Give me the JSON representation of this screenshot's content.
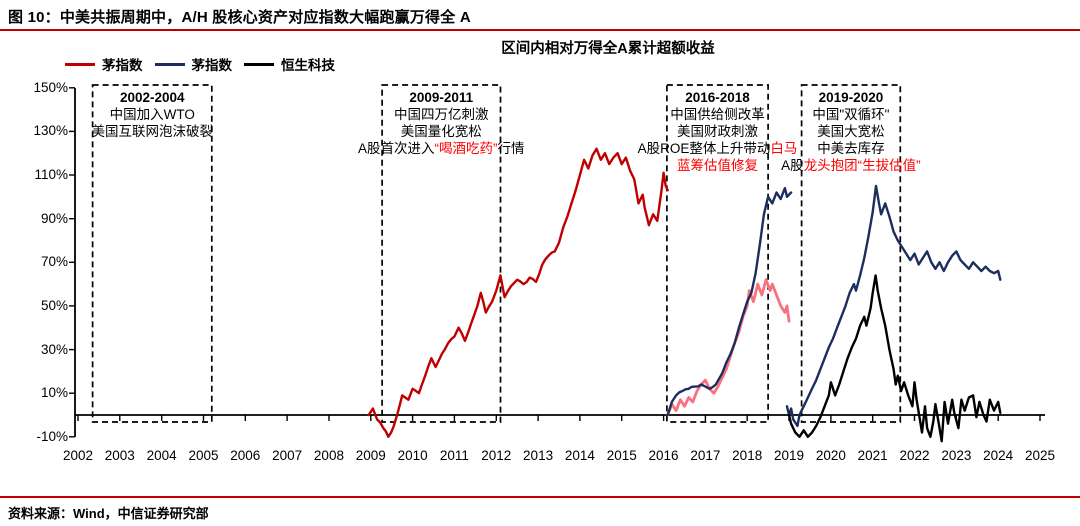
{
  "header": {
    "title": "图 10：中美共振周期中，A/H 股核心资产对应指数大幅跑赢万得全 A"
  },
  "footer": {
    "source": "资料来源：Wind，中信证券研究部"
  },
  "colors": {
    "title_rule_red": "#C00000",
    "annotation_red_text": "#FF0000",
    "axis_black": "#000000"
  },
  "chart_data": {
    "type": "line",
    "title": "区间内相对万得全A累计超额收益",
    "grid": false,
    "legend_position": "top-left",
    "y_axis": {
      "unit": "%",
      "lim": [
        -10,
        150
      ],
      "ticks": [
        150,
        130,
        110,
        90,
        70,
        50,
        30,
        10,
        -10
      ]
    },
    "x_axis": {
      "lim": [
        2002,
        2025
      ],
      "ticks": [
        2002,
        2003,
        2004,
        2005,
        2006,
        2007,
        2008,
        2009,
        2010,
        2011,
        2012,
        2013,
        2014,
        2015,
        2016,
        2017,
        2018,
        2019,
        2020,
        2021,
        2022,
        2023,
        2024,
        2025
      ]
    },
    "legend": [
      {
        "label": "茅指数",
        "color": "#C00000"
      },
      {
        "label": "茅指数",
        "color": "#1B2E5F"
      },
      {
        "label": "恒生科技",
        "color": "#000000"
      }
    ],
    "series": [
      {
        "name": "茅指数",
        "color": "#C00000",
        "points": [
          [
            2008.95,
            0
          ],
          [
            2009.05,
            3
          ],
          [
            2009.15,
            -2
          ],
          [
            2009.3,
            -6
          ],
          [
            2009.42,
            -10
          ],
          [
            2009.55,
            -5
          ],
          [
            2009.63,
            0
          ],
          [
            2009.75,
            9
          ],
          [
            2009.9,
            7
          ],
          [
            2010.0,
            12
          ],
          [
            2010.15,
            10
          ],
          [
            2010.3,
            18
          ],
          [
            2010.45,
            26
          ],
          [
            2010.55,
            22
          ],
          [
            2010.7,
            28
          ],
          [
            2010.85,
            33
          ],
          [
            2011.0,
            36
          ],
          [
            2011.1,
            40
          ],
          [
            2011.25,
            34
          ],
          [
            2011.4,
            42
          ],
          [
            2011.55,
            50
          ],
          [
            2011.63,
            56
          ],
          [
            2011.75,
            47
          ],
          [
            2011.9,
            52
          ],
          [
            2012.0,
            57
          ],
          [
            2012.1,
            64
          ],
          [
            2012.2,
            54
          ],
          [
            2012.35,
            59
          ],
          [
            2012.5,
            62
          ],
          [
            2012.65,
            60
          ],
          [
            2012.8,
            63
          ],
          [
            2012.95,
            61
          ],
          [
            2013.1,
            69
          ],
          [
            2013.25,
            73
          ],
          [
            2013.4,
            75
          ],
          [
            2013.5,
            79
          ],
          [
            2013.6,
            86
          ],
          [
            2013.7,
            91
          ],
          [
            2013.8,
            97
          ],
          [
            2013.9,
            103
          ],
          [
            2014.0,
            110
          ],
          [
            2014.1,
            117
          ],
          [
            2014.2,
            113
          ],
          [
            2014.3,
            119
          ],
          [
            2014.4,
            122
          ],
          [
            2014.5,
            117
          ],
          [
            2014.6,
            120
          ],
          [
            2014.7,
            115
          ],
          [
            2014.8,
            118
          ],
          [
            2014.9,
            120
          ],
          [
            2015.0,
            115
          ],
          [
            2015.1,
            118
          ],
          [
            2015.2,
            112
          ],
          [
            2015.3,
            108
          ],
          [
            2015.4,
            97
          ],
          [
            2015.5,
            101
          ],
          [
            2015.55,
            95
          ],
          [
            2015.65,
            87
          ],
          [
            2015.75,
            92
          ],
          [
            2015.85,
            89
          ],
          [
            2015.95,
            103
          ],
          [
            2016.0,
            111
          ],
          [
            2016.05,
            105
          ],
          [
            2016.1,
            103
          ]
        ]
      },
      {
        "name": "茅指数",
        "color": "#F9707E",
        "points": [
          [
            2016.1,
            0
          ],
          [
            2016.2,
            5
          ],
          [
            2016.3,
            2
          ],
          [
            2016.4,
            7
          ],
          [
            2016.5,
            4
          ],
          [
            2016.6,
            8
          ],
          [
            2016.7,
            6
          ],
          [
            2016.8,
            11
          ],
          [
            2016.9,
            14
          ],
          [
            2017.0,
            16
          ],
          [
            2017.1,
            12
          ],
          [
            2017.2,
            10
          ],
          [
            2017.3,
            13
          ],
          [
            2017.4,
            17
          ],
          [
            2017.5,
            21
          ],
          [
            2017.6,
            27
          ],
          [
            2017.7,
            33
          ],
          [
            2017.8,
            38
          ],
          [
            2017.9,
            45
          ],
          [
            2018.0,
            50
          ],
          [
            2018.05,
            57
          ],
          [
            2018.15,
            52
          ],
          [
            2018.25,
            60
          ],
          [
            2018.35,
            55
          ],
          [
            2018.45,
            62
          ],
          [
            2018.55,
            57
          ],
          [
            2018.6,
            60
          ],
          [
            2018.7,
            55
          ],
          [
            2018.8,
            50
          ],
          [
            2018.9,
            47
          ],
          [
            2018.95,
            50
          ],
          [
            2019.0,
            43
          ]
        ]
      },
      {
        "name": "茅指数",
        "color": "#1B2E5F",
        "points": [
          [
            2016.1,
            0
          ],
          [
            2016.2,
            6
          ],
          [
            2016.3,
            9
          ],
          [
            2016.45,
            11
          ],
          [
            2016.6,
            12
          ],
          [
            2016.75,
            13
          ],
          [
            2016.9,
            14
          ],
          [
            2017.0,
            13
          ],
          [
            2017.1,
            12
          ],
          [
            2017.25,
            14
          ],
          [
            2017.4,
            19
          ],
          [
            2017.5,
            24
          ],
          [
            2017.6,
            28
          ],
          [
            2017.7,
            33
          ],
          [
            2017.8,
            40
          ],
          [
            2017.9,
            46
          ],
          [
            2018.0,
            52
          ],
          [
            2018.1,
            56
          ],
          [
            2018.2,
            65
          ],
          [
            2018.3,
            78
          ],
          [
            2018.4,
            92
          ],
          [
            2018.5,
            100
          ],
          [
            2018.6,
            97
          ],
          [
            2018.7,
            102
          ],
          [
            2018.8,
            99
          ],
          [
            2018.9,
            104
          ],
          [
            2018.95,
            100
          ],
          [
            2019.05,
            102
          ]
        ]
      },
      {
        "name": "茅指数",
        "color": "#1B2E5F",
        "points": [
          [
            2018.95,
            4
          ],
          [
            2019.0,
            0
          ],
          [
            2019.05,
            3
          ],
          [
            2019.1,
            -2
          ],
          [
            2019.2,
            -5
          ],
          [
            2019.25,
            0
          ],
          [
            2019.35,
            4
          ],
          [
            2019.45,
            8
          ],
          [
            2019.55,
            12
          ],
          [
            2019.65,
            16
          ],
          [
            2019.75,
            21
          ],
          [
            2019.85,
            26
          ],
          [
            2019.95,
            31
          ],
          [
            2020.05,
            35
          ],
          [
            2020.15,
            40
          ],
          [
            2020.25,
            45
          ],
          [
            2020.35,
            50
          ],
          [
            2020.45,
            56
          ],
          [
            2020.55,
            60
          ],
          [
            2020.6,
            57
          ],
          [
            2020.7,
            64
          ],
          [
            2020.8,
            72
          ],
          [
            2020.9,
            82
          ],
          [
            2021.0,
            93
          ],
          [
            2021.08,
            105
          ],
          [
            2021.15,
            97
          ],
          [
            2021.2,
            92
          ],
          [
            2021.3,
            97
          ],
          [
            2021.4,
            91
          ],
          [
            2021.5,
            84
          ],
          [
            2021.6,
            80
          ],
          [
            2021.7,
            77
          ],
          [
            2021.8,
            74
          ],
          [
            2021.9,
            71
          ],
          [
            2022.0,
            74
          ],
          [
            2022.1,
            69
          ],
          [
            2022.2,
            72
          ],
          [
            2022.3,
            75
          ],
          [
            2022.4,
            70
          ],
          [
            2022.5,
            67
          ],
          [
            2022.6,
            70
          ],
          [
            2022.7,
            66
          ],
          [
            2022.8,
            70
          ],
          [
            2022.9,
            73
          ],
          [
            2023.0,
            75
          ],
          [
            2023.1,
            71
          ],
          [
            2023.2,
            69
          ],
          [
            2023.3,
            67
          ],
          [
            2023.4,
            70
          ],
          [
            2023.5,
            68
          ],
          [
            2023.6,
            66
          ],
          [
            2023.7,
            68
          ],
          [
            2023.8,
            66
          ],
          [
            2023.9,
            65
          ],
          [
            2024.0,
            66
          ],
          [
            2024.05,
            62
          ]
        ]
      },
      {
        "name": "恒生科技",
        "color": "#000000",
        "points": [
          [
            2019.0,
            0
          ],
          [
            2019.05,
            -4
          ],
          [
            2019.15,
            -8
          ],
          [
            2019.25,
            -10
          ],
          [
            2019.35,
            -7
          ],
          [
            2019.45,
            -10
          ],
          [
            2019.55,
            -8
          ],
          [
            2019.65,
            -5
          ],
          [
            2019.75,
            -1
          ],
          [
            2019.85,
            4
          ],
          [
            2019.95,
            9
          ],
          [
            2020.0,
            15
          ],
          [
            2020.1,
            9
          ],
          [
            2020.2,
            14
          ],
          [
            2020.3,
            20
          ],
          [
            2020.4,
            26
          ],
          [
            2020.5,
            31
          ],
          [
            2020.6,
            35
          ],
          [
            2020.7,
            41
          ],
          [
            2020.8,
            45
          ],
          [
            2020.85,
            41
          ],
          [
            2020.95,
            49
          ],
          [
            2021.0,
            56
          ],
          [
            2021.07,
            64
          ],
          [
            2021.12,
            57
          ],
          [
            2021.2,
            49
          ],
          [
            2021.3,
            41
          ],
          [
            2021.4,
            30
          ],
          [
            2021.5,
            21
          ],
          [
            2021.55,
            14
          ],
          [
            2021.6,
            18
          ],
          [
            2021.68,
            11
          ],
          [
            2021.75,
            15
          ],
          [
            2021.85,
            9
          ],
          [
            2021.95,
            4
          ],
          [
            2022.0,
            15
          ],
          [
            2022.05,
            7
          ],
          [
            2022.12,
            -1
          ],
          [
            2022.18,
            -8
          ],
          [
            2022.25,
            4
          ],
          [
            2022.3,
            -6
          ],
          [
            2022.38,
            -10
          ],
          [
            2022.45,
            -3
          ],
          [
            2022.5,
            5
          ],
          [
            2022.58,
            -4
          ],
          [
            2022.65,
            -12
          ],
          [
            2022.72,
            6
          ],
          [
            2022.8,
            -4
          ],
          [
            2022.9,
            7
          ],
          [
            2022.95,
            1
          ],
          [
            2023.05,
            -6
          ],
          [
            2023.12,
            7
          ],
          [
            2023.2,
            2
          ],
          [
            2023.3,
            8
          ],
          [
            2023.4,
            9
          ],
          [
            2023.48,
            -1
          ],
          [
            2023.55,
            6
          ],
          [
            2023.65,
            0
          ],
          [
            2023.72,
            -3
          ],
          [
            2023.8,
            7
          ],
          [
            2023.9,
            2
          ],
          [
            2024.0,
            6
          ],
          [
            2024.05,
            1
          ]
        ]
      }
    ],
    "annotations": [
      {
        "period": "2002-2004",
        "years": [
          2002.35,
          2005.2
        ],
        "lines": [
          [
            {
              "text": "中国加入WTO"
            }
          ],
          [
            {
              "text": "美国互联网泡沫破裂"
            }
          ]
        ]
      },
      {
        "period": "2009-2011",
        "years": [
          2009.27,
          2012.1
        ],
        "lines": [
          [
            {
              "text": "中国四万亿刺激"
            }
          ],
          [
            {
              "text": "美国量化宽松"
            }
          ],
          [
            {
              "text": "A股首次进入"
            },
            {
              "text": "“喝酒吃药”",
              "red": true
            },
            {
              "text": "行情"
            }
          ]
        ]
      },
      {
        "period": "2016-2018",
        "years": [
          2016.08,
          2018.5
        ],
        "lines": [
          [
            {
              "text": "中国供给侧改革"
            }
          ],
          [
            {
              "text": "美国财政刺激"
            }
          ],
          [
            {
              "text": "A股ROE整体上升带动"
            },
            {
              "text": "白马",
              "red": true
            }
          ],
          [
            {
              "text": "蓝筹估值修复",
              "red": true
            }
          ]
        ]
      },
      {
        "period": "2019-2020",
        "years": [
          2019.3,
          2021.66
        ],
        "lines": [
          [
            {
              "text": "中国\"双循环\""
            }
          ],
          [
            {
              "text": "美国大宽松"
            }
          ],
          [
            {
              "text": "中美去库存"
            }
          ],
          [
            {
              "text": "A股"
            },
            {
              "text": "龙头抱团“生拔估值”",
              "red": true
            }
          ]
        ]
      }
    ]
  }
}
